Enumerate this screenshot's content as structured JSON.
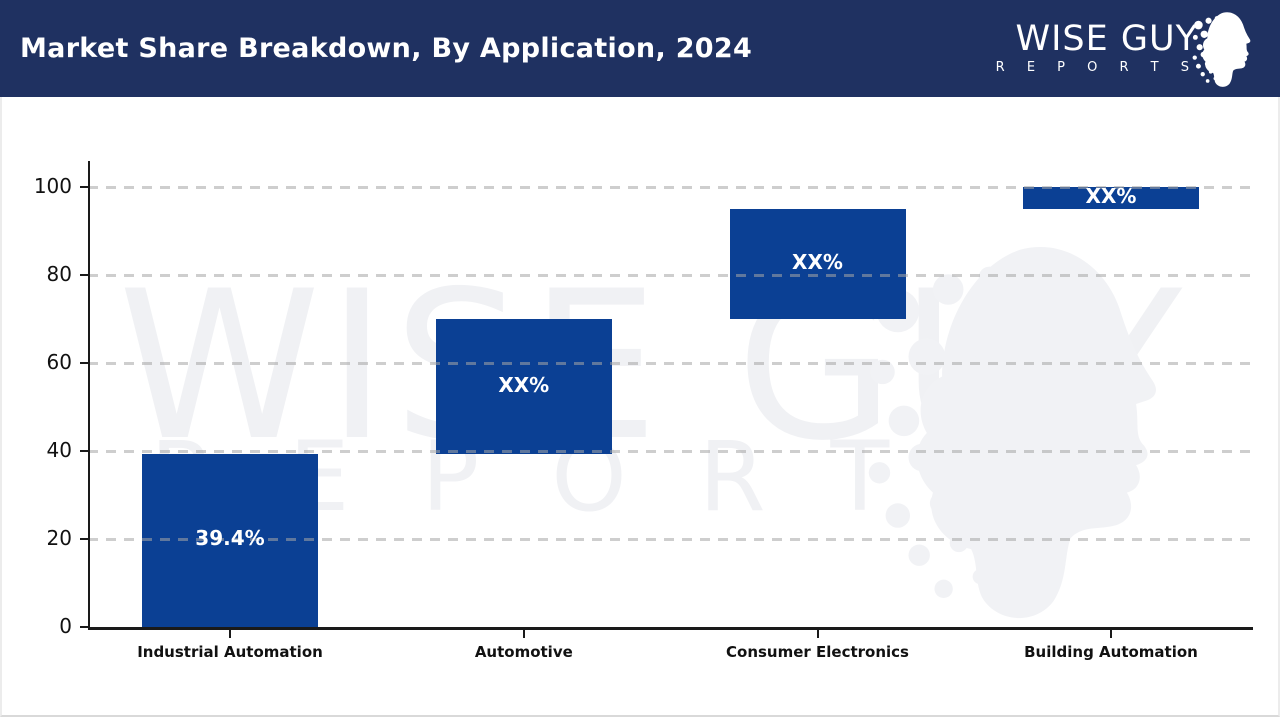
{
  "header": {
    "title": "Market Share Breakdown, By Application, 2024",
    "logo": {
      "line1": "WISE GUY",
      "line2": "R E P O R T S"
    }
  },
  "watermark": {
    "line1": "WISE GUY",
    "line2": "REPORTS"
  },
  "chart_data": {
    "type": "bar",
    "subtype": "waterfall",
    "title": "Market Share Breakdown, By Application, 2024",
    "categories": [
      "Industrial Automation",
      "Automotive",
      "Consumer Electronics",
      "Building Automation"
    ],
    "segments": [
      {
        "category": "Industrial Automation",
        "start": 0,
        "end": 39.4,
        "value_label": "39.4%"
      },
      {
        "category": "Automotive",
        "start": 39.4,
        "end": 70,
        "value_label": "XX%"
      },
      {
        "category": "Consumer Electronics",
        "start": 70,
        "end": 95,
        "value_label": "XX%"
      },
      {
        "category": "Building Automation",
        "start": 95,
        "end": 100,
        "value_label": "XX%"
      }
    ],
    "xlabel": "",
    "ylabel": "",
    "ylim": [
      0,
      100
    ],
    "yticks": [
      0,
      20,
      40,
      60,
      80,
      100
    ],
    "grid": "horizontal-dashed",
    "legend": "none",
    "colors": {
      "bar": "#0b4094",
      "bar_value_label": "#ffffff",
      "header_background": "#1f3161",
      "axis": "#1a1a1a",
      "gridline": "#d6d6d6",
      "watermark": "#f0f1f4"
    }
  }
}
